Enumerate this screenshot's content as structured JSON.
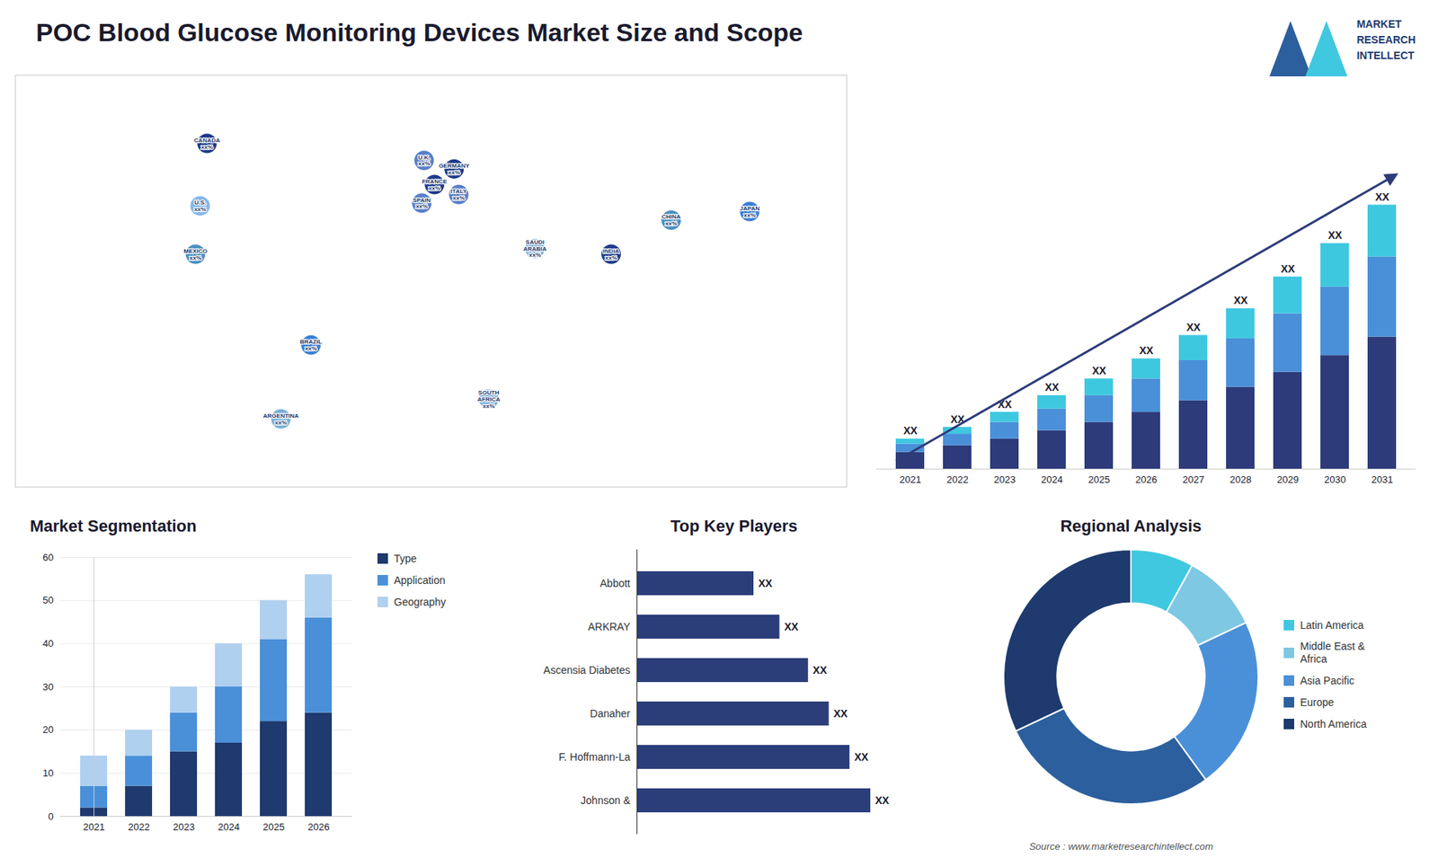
{
  "title": "POC Blood Glucose Monitoring Devices Market Size and Scope",
  "annotations": [
    {
      "text": "MARKET\nRESEARCH\nINTELLECT"
    },
    {
      "text": "Source : www.marketresearchintellect.com"
    }
  ],
  "chart_data": [
    {
      "type": "map",
      "xlim": [
        -180,
        180
      ],
      "ylim": [
        -60,
        85
      ],
      "tick_labels": false,
      "annotations": [
        {
          "text": "U.S.\nxx%",
          "x": -100,
          "y": 39,
          "color": "#85b8e8"
        },
        {
          "text": "CANADA\nxx%",
          "x": -97,
          "y": 61,
          "color": "#1e3a8a"
        },
        {
          "text": "MEXICO\nxx%",
          "x": -102,
          "y": 22,
          "color": "#4a90c0"
        },
        {
          "text": "BRAZIL\nxx%",
          "x": -52,
          "y": -10,
          "color": "#3a7fd5"
        },
        {
          "text": "ARGENTINA\nxx%",
          "x": -65,
          "y": -36,
          "color": "#7ab0d8"
        },
        {
          "text": "U.K.\nxx%",
          "x": -3,
          "y": 55,
          "color": "#5a7fc8"
        },
        {
          "text": "FRANCE\nxx%",
          "x": 1.5,
          "y": 46.5,
          "color": "#1e3a8a"
        },
        {
          "text": "GERMANY\nxx%",
          "x": 10,
          "y": 52,
          "color": "#1e3a8a"
        },
        {
          "text": "SPAIN\nxx%",
          "x": -4,
          "y": 40,
          "color": "#5a7fc8"
        },
        {
          "text": "ITALY\nxx%",
          "x": 12,
          "y": 43,
          "color": "#5a7fc8"
        },
        {
          "text": "SAUDI\nARABIA\nxx%",
          "x": 45,
          "y": 24,
          "color": "#7ab0d8"
        },
        {
          "text": "SOUTH\nAFRICA\nxx%",
          "x": 25,
          "y": -29,
          "color": "#7ab0d8"
        },
        {
          "text": "CHINA\nxx%",
          "x": 104,
          "y": 34,
          "color": "#4a90c0"
        },
        {
          "text": "JAPAN\nxx%",
          "x": 138,
          "y": 37,
          "color": "#3a7fd5"
        },
        {
          "text": "INDIA\nxx%",
          "x": 78,
          "y": 22,
          "color": "#1e3a8a"
        }
      ]
    },
    {
      "type": "bar",
      "stacked": true,
      "categories": [
        "2021",
        "2022",
        "2023",
        "2024",
        "2025",
        "2026",
        "2027",
        "2028",
        "2029",
        "2030",
        "2031"
      ],
      "series": [
        {
          "color": "#2d3b7a",
          "values": [
            1.0,
            1.4,
            1.8,
            2.3,
            2.8,
            3.4,
            4.1,
            4.9,
            5.8,
            6.8,
            7.9
          ]
        },
        {
          "color": "#4a90d9",
          "values": [
            0.5,
            0.7,
            1.0,
            1.3,
            1.6,
            2.0,
            2.4,
            2.9,
            3.5,
            4.1,
            4.8
          ]
        },
        {
          "color": "#3ec8e0",
          "values": [
            0.3,
            0.4,
            0.6,
            0.8,
            1.0,
            1.2,
            1.5,
            1.8,
            2.2,
            2.6,
            3.1
          ]
        }
      ],
      "ylim": [
        0,
        21.33
      ],
      "tick_labels": "x",
      "annotations": [
        {
          "text": "XX",
          "x": "2021"
        },
        {
          "text": "XX",
          "x": "2022"
        },
        {
          "text": "XX",
          "x": "2023"
        },
        {
          "text": "XX",
          "x": "2024"
        },
        {
          "text": "XX",
          "x": "2025"
        },
        {
          "text": "XX",
          "x": "2026"
        },
        {
          "text": "XX",
          "x": "2027"
        },
        {
          "text": "XX",
          "x": "2028"
        },
        {
          "text": "XX",
          "x": "2029"
        },
        {
          "text": "XX",
          "x": "2030"
        },
        {
          "text": "XX",
          "x": "2031"
        }
      ]
    },
    {
      "type": "bar",
      "title": "Market Segmentation",
      "stacked": true,
      "categories": [
        "2021",
        "2022",
        "2023",
        "2024",
        "2025",
        "2026"
      ],
      "series": [
        {
          "name": "Type",
          "color": "#1e3a6e",
          "values": [
            2,
            7,
            15,
            17,
            22,
            24
          ]
        },
        {
          "name": "Application",
          "color": "#4a90d9",
          "values": [
            5,
            7,
            9,
            13,
            19,
            22
          ]
        },
        {
          "name": "Geography",
          "color": "#b0d0f0",
          "values": [
            7,
            6,
            6,
            10,
            9,
            10
          ]
        }
      ],
      "ylim": [
        0,
        60
      ],
      "yticks": [
        0,
        10,
        20,
        30,
        40,
        50,
        60
      ],
      "grid": true,
      "legend": "right"
    },
    {
      "type": "bar",
      "title": "Top Key Players",
      "orientation": "horizontal",
      "categories": [
        "Johnson &",
        "F. Hoffmann-La",
        "Danaher",
        "Ascensia Diabetes",
        "ARKRAY",
        "Abbott"
      ],
      "values": [
        9.0,
        8.2,
        7.4,
        6.6,
        5.5,
        4.5
      ],
      "color": "#2c3e7a",
      "xlim": [
        0,
        11.25
      ],
      "tick_labels": "y",
      "annotations": [
        {
          "text": "XX",
          "y": "Johnson &"
        },
        {
          "text": "XX",
          "y": "F. Hoffmann-La"
        },
        {
          "text": "XX",
          "y": "Danaher"
        },
        {
          "text": "XX",
          "y": "Ascensia Diabetes"
        },
        {
          "text": "XX",
          "y": "ARKRAY"
        },
        {
          "text": "XX",
          "y": "Abbott"
        }
      ]
    },
    {
      "type": "donut",
      "title": "Regional Analysis",
      "categories": [
        "Latin America",
        "Middle East &\nAfrica",
        "Asia Pacific",
        "Europe",
        "North America"
      ],
      "values": [
        8,
        10,
        22,
        28,
        32
      ],
      "colors": [
        "#40c8e0",
        "#7ec8e3",
        "#4a90d9",
        "#2c5f9e",
        "#1e3a6e"
      ],
      "legend": "right"
    }
  ]
}
